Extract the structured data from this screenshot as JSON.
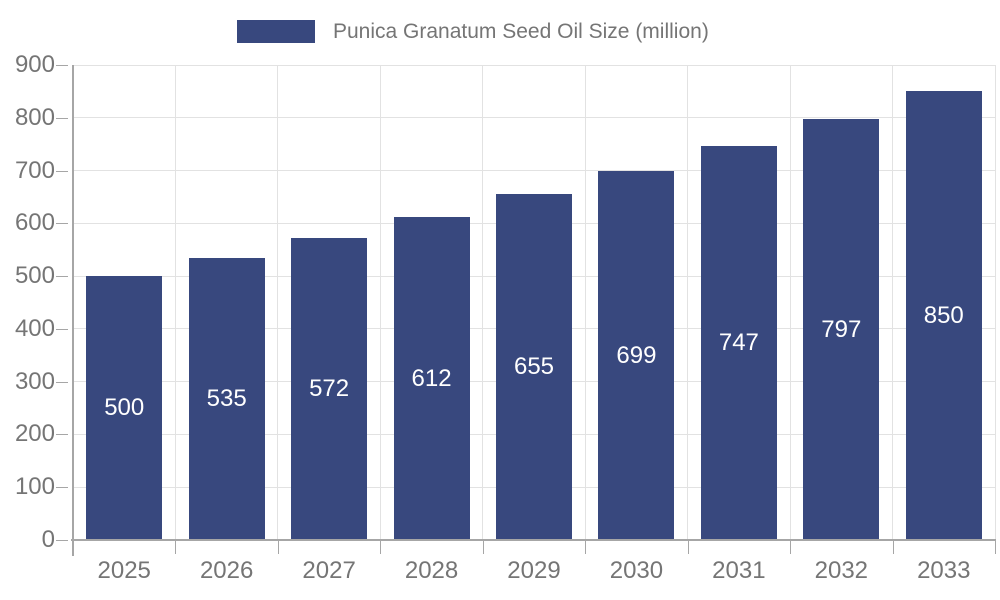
{
  "legend": {
    "label": "Punica Granatum Seed Oil Size (million)"
  },
  "chart_data": {
    "type": "bar",
    "title": "Punica Granatum Seed Oil Size (million)",
    "series_name": "Punica Granatum Seed Oil Size (million)",
    "categories": [
      "2025",
      "2026",
      "2027",
      "2028",
      "2029",
      "2030",
      "2031",
      "2032",
      "2033"
    ],
    "values": [
      500,
      535,
      572,
      612,
      655,
      699,
      747,
      797,
      850
    ],
    "value_labels_shown": true,
    "xlabel": "",
    "ylabel": "",
    "ylim": [
      0,
      900
    ],
    "yticks": [
      0,
      100,
      200,
      300,
      400,
      500,
      600,
      700,
      800,
      900
    ],
    "grid": true,
    "legend_position": "top",
    "colors": {
      "bar": "#38487e",
      "value_label": "#ffffff",
      "axis_line": "#a6a6a6",
      "gridline": "#e2e2e2",
      "axis_text": "#757575",
      "background": "#ffffff"
    }
  }
}
